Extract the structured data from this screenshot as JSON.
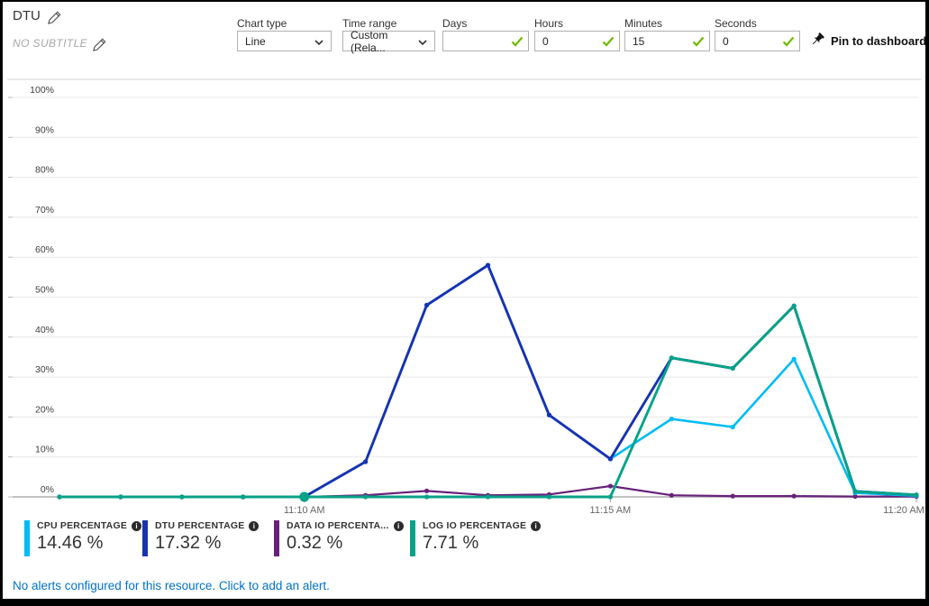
{
  "header": {
    "title": "DTU",
    "subtitle": "NO SUBTITLE"
  },
  "controls": {
    "chart_type": {
      "label": "Chart type",
      "value": "Line"
    },
    "time_range": {
      "label": "Time range",
      "value": "Custom (Rela..."
    },
    "days": {
      "label": "Days",
      "value": ""
    },
    "hours": {
      "label": "Hours",
      "value": "0"
    },
    "minutes": {
      "label": "Minutes",
      "value": "15"
    },
    "seconds": {
      "label": "Seconds",
      "value": "0"
    },
    "pin_label": "Pin to dashboard"
  },
  "chart_data": {
    "type": "line",
    "title": "DTU",
    "ylabel": "%",
    "ylim": [
      0,
      100
    ],
    "y_tick_step": 10,
    "y_tick_suffix": "%",
    "grid": true,
    "x_description": "one point per minute, 11:06 AM to 11:20 AM (15 minute window)",
    "x_ticks": [
      {
        "index": 4,
        "label": "11:10 AM"
      },
      {
        "index": 9,
        "label": "11:15 AM"
      },
      {
        "index": 14,
        "label": "11:20 AM",
        "label_x": 1003
      }
    ],
    "series": [
      {
        "name": "CPU PERCENTAGE",
        "color": "#00bcf2",
        "values": [
          0,
          0,
          0,
          0,
          0,
          8.8,
          48,
          58,
          20.5,
          9.5,
          19.5,
          17.5,
          34.5,
          1,
          0.3
        ]
      },
      {
        "name": "DTU PERCENTAGE",
        "color": "#1733b0",
        "values": [
          0,
          0,
          0,
          0,
          0,
          8.8,
          48,
          58,
          20.5,
          9.5,
          34.8,
          32.2,
          47.8,
          1.4,
          0.5
        ]
      },
      {
        "name": "DATA IO PERCENTAGE",
        "color": "#68217a",
        "values": [
          0,
          0,
          0,
          0,
          0,
          0.4,
          1.5,
          0.4,
          0.6,
          2.7,
          0.4,
          0.2,
          0.2,
          0.1,
          0.1
        ]
      },
      {
        "name": "LOG IO PERCENTAGE",
        "color": "#07a287",
        "values": [
          0,
          0,
          0,
          0,
          0,
          0,
          0,
          0,
          0,
          0,
          34.8,
          32.2,
          47.8,
          1.4,
          0.5
        ]
      }
    ],
    "draw_order": [
      2,
      0,
      1,
      3
    ],
    "highlight_point": {
      "series_index": 3,
      "point_index": 4
    },
    "legend_position": "bottom"
  },
  "legend": [
    {
      "title": "CPU PERCENTAGE",
      "value": "14.46 %",
      "color": "#00bcf2"
    },
    {
      "title": "DTU PERCENTAGE",
      "value": "17.32 %",
      "color": "#1733b0"
    },
    {
      "title": "DATA IO PERCENTA...",
      "value": "0.32 %",
      "color": "#68217a"
    },
    {
      "title": "LOG IO PERCENTAGE",
      "value": "7.71 %",
      "color": "#07a287"
    }
  ],
  "footer": {
    "alert_text": "No alerts configured for this resource. Click to add an alert."
  },
  "colors": {
    "accent_link": "#0072c6",
    "valid_check": "#6fba00",
    "gridline": "#e8e8e8",
    "axis_baseline": "#c2c2c2"
  }
}
